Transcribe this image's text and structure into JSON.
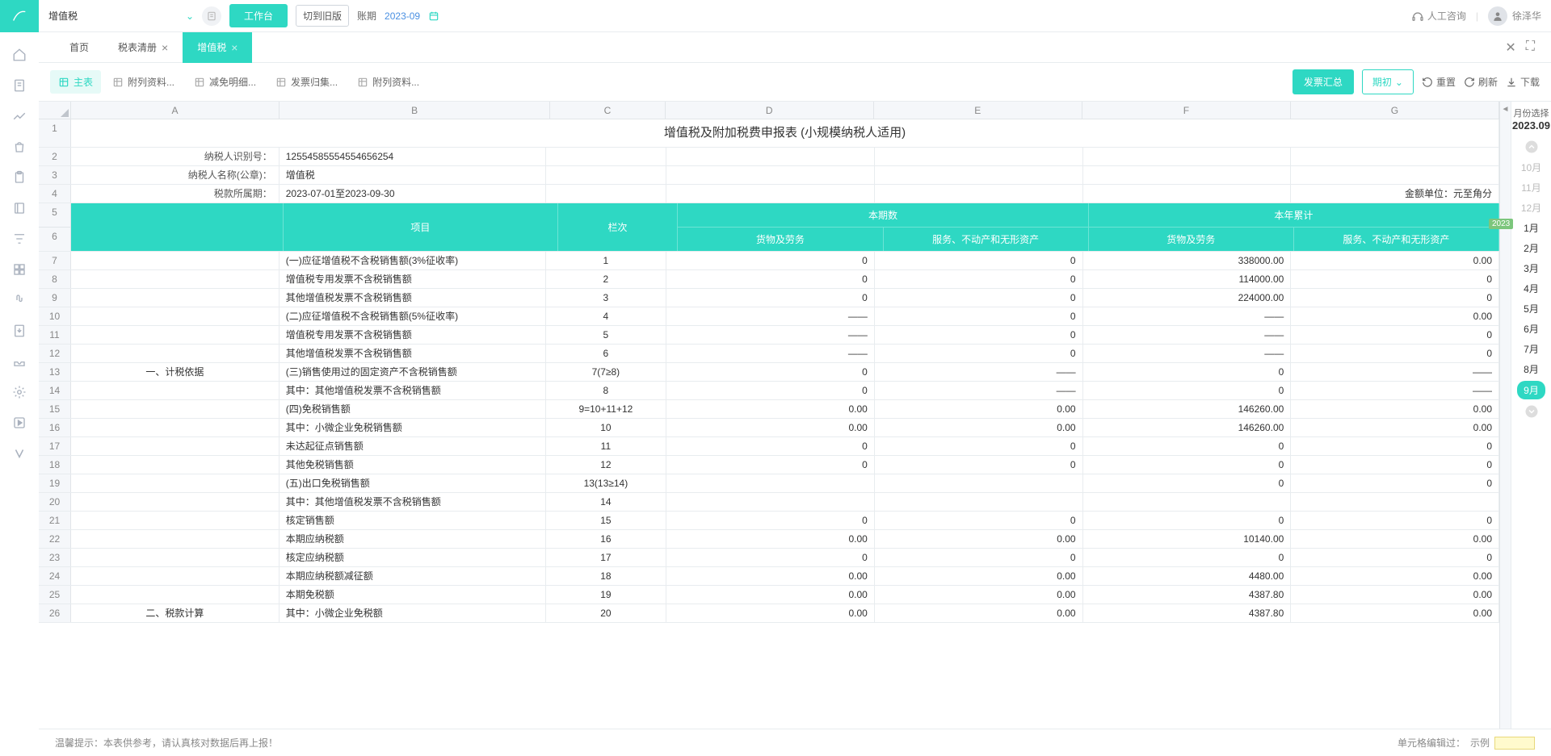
{
  "header": {
    "company": "增值税",
    "workbench": "工作台",
    "switch_old": "切到旧版",
    "period_label": "账期",
    "period_value": "2023-09",
    "consult": "人工咨询",
    "user_name": "徐泽华"
  },
  "tabs": [
    {
      "label": "首页",
      "closable": false,
      "active": false
    },
    {
      "label": "税表清册",
      "closable": true,
      "active": false
    },
    {
      "label": "增值税",
      "closable": true,
      "active": true
    }
  ],
  "sub_tabs": [
    {
      "label": "主表",
      "active": true
    },
    {
      "label": "附列资料...",
      "active": false
    },
    {
      "label": "减免明细...",
      "active": false
    },
    {
      "label": "发票归集...",
      "active": false
    },
    {
      "label": "附列资料...",
      "active": false
    }
  ],
  "toolbar": {
    "invoice_summary": "发票汇总",
    "period_start": "期初",
    "reset": "重置",
    "refresh": "刷新",
    "download": "下载"
  },
  "columns": [
    "A",
    "B",
    "C",
    "D",
    "E",
    "F",
    "G"
  ],
  "sheet": {
    "title": "增值税及附加税费申报表 (小规模纳税人适用)",
    "taxpayer_id_label": "纳税人识别号：",
    "taxpayer_id": "12554585554554656254",
    "taxpayer_name_label": "纳税人名称(公章)：",
    "taxpayer_name": "增值税",
    "period_label": "税款所属期：",
    "period_value": "2023-07-01至2023-09-30",
    "unit_label": "金额单位：元至角分",
    "th_project": "项目",
    "th_column": "栏次",
    "th_current": "本期数",
    "th_year": "本年累计",
    "th_goods": "货物及劳务",
    "th_service": "服务、不动产和无形资产",
    "section1": "一、计税依据",
    "section2": "二、税款计算",
    "rows": [
      {
        "n": 7,
        "item": "(一)应征增值税不含税销售额(3%征收率)",
        "col": "1",
        "d": "0",
        "e": "0",
        "f": "338000.00",
        "g": "0.00"
      },
      {
        "n": 8,
        "item": "增值税专用发票不含税销售额",
        "col": "2",
        "d": "0",
        "e": "0",
        "f": "114000.00",
        "g": "0"
      },
      {
        "n": 9,
        "item": "其他增值税发票不含税销售额",
        "col": "3",
        "d": "0",
        "e": "0",
        "f": "224000.00",
        "g": "0"
      },
      {
        "n": 10,
        "item": "(二)应征增值税不含税销售额(5%征收率)",
        "col": "4",
        "d": "——",
        "e": "0",
        "f": "——",
        "g": "0.00"
      },
      {
        "n": 11,
        "item": "增值税专用发票不含税销售额",
        "col": "5",
        "d": "——",
        "e": "0",
        "f": "——",
        "g": "0"
      },
      {
        "n": 12,
        "item": "其他增值税发票不含税销售额",
        "col": "6",
        "d": "——",
        "e": "0",
        "f": "——",
        "g": "0"
      },
      {
        "n": 13,
        "item": "(三)销售使用过的固定资产不含税销售额",
        "col": "7(7≥8)",
        "d": "0",
        "e": "——",
        "f": "0",
        "g": "——"
      },
      {
        "n": 14,
        "item": "其中：其他增值税发票不含税销售额",
        "col": "8",
        "d": "0",
        "e": "——",
        "f": "0",
        "g": "——"
      },
      {
        "n": 15,
        "item": "(四)免税销售额",
        "col": "9=10+11+12",
        "d": "0.00",
        "e": "0.00",
        "f": "146260.00",
        "g": "0.00"
      },
      {
        "n": 16,
        "item": "其中：小微企业免税销售额",
        "col": "10",
        "d": "0.00",
        "e": "0.00",
        "f": "146260.00",
        "g": "0.00"
      },
      {
        "n": 17,
        "item": "未达起征点销售额",
        "col": "11",
        "d": "0",
        "e": "0",
        "f": "0",
        "g": "0"
      },
      {
        "n": 18,
        "item": "其他免税销售额",
        "col": "12",
        "d": "0",
        "e": "0",
        "f": "0",
        "g": "0"
      },
      {
        "n": 19,
        "item": "(五)出口免税销售额",
        "col": "13(13≥14)",
        "d": "",
        "e": "",
        "f": "0",
        "g": "0"
      },
      {
        "n": 20,
        "item": "其中：其他增值税发票不含税销售额",
        "col": "14",
        "d": "",
        "e": "",
        "f": "",
        "g": ""
      },
      {
        "n": 21,
        "item": "核定销售额",
        "col": "15",
        "d": "0",
        "e": "0",
        "f": "0",
        "g": "0"
      },
      {
        "n": 22,
        "item": "本期应纳税额",
        "col": "16",
        "d": "0.00",
        "e": "0.00",
        "f": "10140.00",
        "g": "0.00"
      },
      {
        "n": 23,
        "item": "核定应纳税额",
        "col": "17",
        "d": "0",
        "e": "0",
        "f": "0",
        "g": "0"
      },
      {
        "n": 24,
        "item": "本期应纳税额减征额",
        "col": "18",
        "d": "0.00",
        "e": "0.00",
        "f": "4480.00",
        "g": "0.00"
      },
      {
        "n": 25,
        "item": "本期免税额",
        "col": "19",
        "d": "0.00",
        "e": "0.00",
        "f": "4387.80",
        "g": "0.00"
      },
      {
        "n": 26,
        "item": "其中：小微企业免税额",
        "col": "20",
        "d": "0.00",
        "e": "0.00",
        "f": "4387.80",
        "g": "0.00"
      }
    ]
  },
  "month_panel": {
    "title": "月份选择",
    "year": "2023.09",
    "badge": "2023",
    "months": [
      "10月",
      "11月",
      "12月",
      "1月",
      "2月",
      "3月",
      "4月",
      "5月",
      "6月",
      "7月",
      "8月",
      "9月"
    ],
    "disabled_until": 3,
    "active_index": 11
  },
  "footer": {
    "tip": "温馨提示：本表供参考，请认真核对数据后再上报！",
    "cell_edit": "单元格编辑过：",
    "sample": "示例"
  }
}
